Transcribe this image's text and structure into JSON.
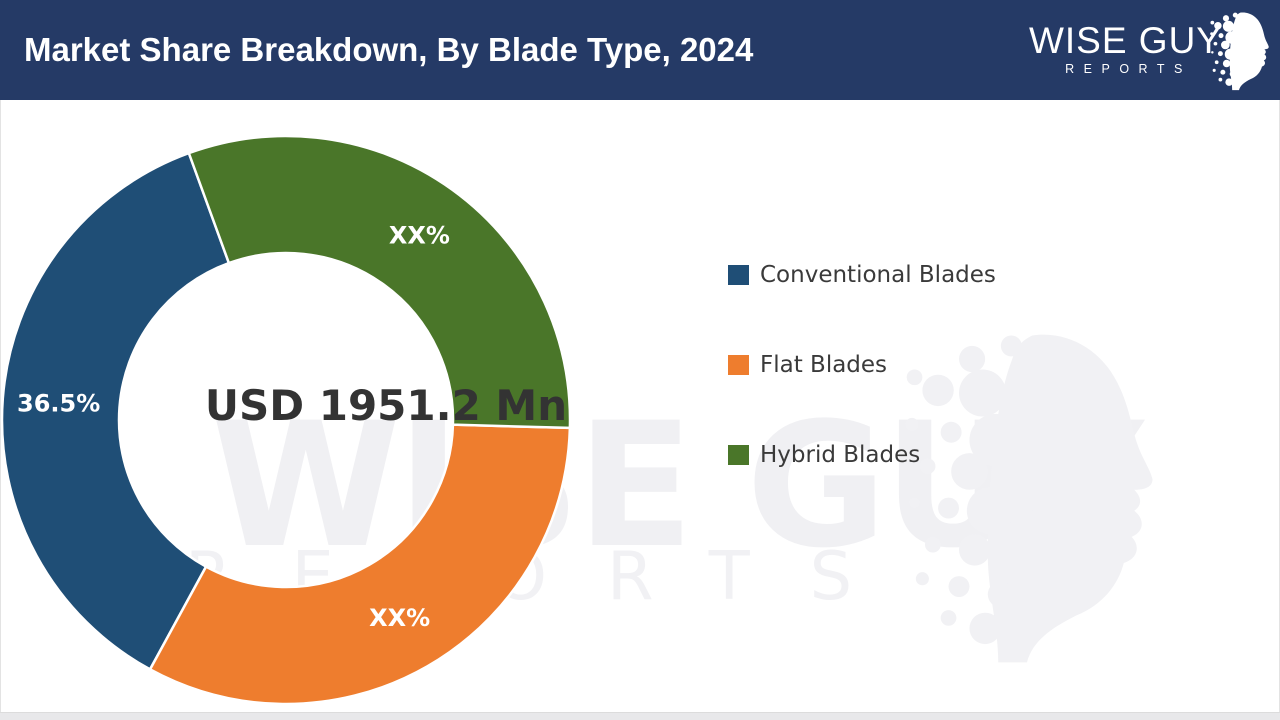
{
  "header": {
    "title": "Market Share Breakdown, By Blade Type, 2024",
    "background_color": "#253A66",
    "logo_line1": "WISE GUY",
    "logo_line2": "REPORTS"
  },
  "watermark": {
    "line1": "WISE GUY",
    "line2": "REPORTS"
  },
  "chart_data": {
    "type": "pie",
    "subtype": "donut",
    "title": "Market Share Breakdown, By Blade Type, 2024",
    "center_label": "USD 1951.2 Mn",
    "legend_position": "right",
    "start_angle_deg": 110,
    "direction": "counterclockwise",
    "slices": [
      {
        "name": "Conventional Blades",
        "display_label": "36.5%",
        "value_pct": 36.5,
        "color": "#1F4E76"
      },
      {
        "name": "Flat Blades",
        "display_label": "XX%",
        "value_pct": 32.5,
        "color": "#EE7D2E"
      },
      {
        "name": "Hybrid Blades",
        "display_label": "XX%",
        "value_pct": 31.0,
        "color": "#4A7629"
      }
    ]
  }
}
